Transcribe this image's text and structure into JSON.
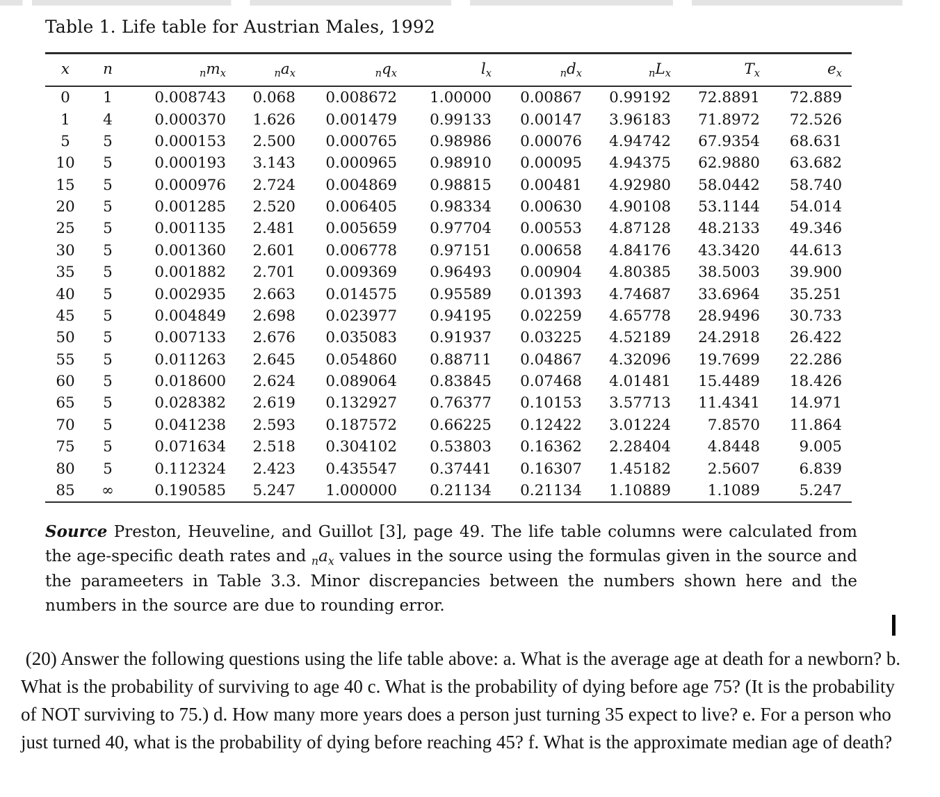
{
  "page": {
    "title": "Table 1. Life table for Austrian Males, 1992"
  },
  "table": {
    "headers": [
      {
        "pre": "",
        "main": "x",
        "sub": ""
      },
      {
        "pre": "",
        "main": "n",
        "sub": ""
      },
      {
        "pre": "n",
        "main": "m",
        "sub": "x"
      },
      {
        "pre": "n",
        "main": "a",
        "sub": "x"
      },
      {
        "pre": "n",
        "main": "q",
        "sub": "x"
      },
      {
        "pre": "",
        "main": "l",
        "sub": "x"
      },
      {
        "pre": "n",
        "main": "d",
        "sub": "x"
      },
      {
        "pre": "n",
        "main": "L",
        "sub": "x"
      },
      {
        "pre": "",
        "main": "T",
        "sub": "x"
      },
      {
        "pre": "",
        "main": "e",
        "sub": "x"
      }
    ],
    "rows": [
      [
        "0",
        "1",
        "0.008743",
        "0.068",
        "0.008672",
        "1.00000",
        "0.00867",
        "0.99192",
        "72.8891",
        "72.889"
      ],
      [
        "1",
        "4",
        "0.000370",
        "1.626",
        "0.001479",
        "0.99133",
        "0.00147",
        "3.96183",
        "71.8972",
        "72.526"
      ],
      [
        "5",
        "5",
        "0.000153",
        "2.500",
        "0.000765",
        "0.98986",
        "0.00076",
        "4.94742",
        "67.9354",
        "68.631"
      ],
      [
        "10",
        "5",
        "0.000193",
        "3.143",
        "0.000965",
        "0.98910",
        "0.00095",
        "4.94375",
        "62.9880",
        "63.682"
      ],
      [
        "15",
        "5",
        "0.000976",
        "2.724",
        "0.004869",
        "0.98815",
        "0.00481",
        "4.92980",
        "58.0442",
        "58.740"
      ],
      [
        "20",
        "5",
        "0.001285",
        "2.520",
        "0.006405",
        "0.98334",
        "0.00630",
        "4.90108",
        "53.1144",
        "54.014"
      ],
      [
        "25",
        "5",
        "0.001135",
        "2.481",
        "0.005659",
        "0.97704",
        "0.00553",
        "4.87128",
        "48.2133",
        "49.346"
      ],
      [
        "30",
        "5",
        "0.001360",
        "2.601",
        "0.006778",
        "0.97151",
        "0.00658",
        "4.84176",
        "43.3420",
        "44.613"
      ],
      [
        "35",
        "5",
        "0.001882",
        "2.701",
        "0.009369",
        "0.96493",
        "0.00904",
        "4.80385",
        "38.5003",
        "39.900"
      ],
      [
        "40",
        "5",
        "0.002935",
        "2.663",
        "0.014575",
        "0.95589",
        "0.01393",
        "4.74687",
        "33.6964",
        "35.251"
      ],
      [
        "45",
        "5",
        "0.004849",
        "2.698",
        "0.023977",
        "0.94195",
        "0.02259",
        "4.65778",
        "28.9496",
        "30.733"
      ],
      [
        "50",
        "5",
        "0.007133",
        "2.676",
        "0.035083",
        "0.91937",
        "0.03225",
        "4.52189",
        "24.2918",
        "26.422"
      ],
      [
        "55",
        "5",
        "0.011263",
        "2.645",
        "0.054860",
        "0.88711",
        "0.04867",
        "4.32096",
        "19.7699",
        "22.286"
      ],
      [
        "60",
        "5",
        "0.018600",
        "2.624",
        "0.089064",
        "0.83845",
        "0.07468",
        "4.01481",
        "15.4489",
        "18.426"
      ],
      [
        "65",
        "5",
        "0.028382",
        "2.619",
        "0.132927",
        "0.76377",
        "0.10153",
        "3.57713",
        "11.4341",
        "14.971"
      ],
      [
        "70",
        "5",
        "0.041238",
        "2.593",
        "0.187572",
        "0.66225",
        "0.12422",
        "3.01224",
        "7.8570",
        "11.864"
      ],
      [
        "75",
        "5",
        "0.071634",
        "2.518",
        "0.304102",
        "0.53803",
        "0.16362",
        "2.28404",
        "4.8448",
        "9.005"
      ],
      [
        "80",
        "5",
        "0.112324",
        "2.423",
        "0.435547",
        "0.37441",
        "0.16307",
        "1.45182",
        "2.5607",
        "6.839"
      ],
      [
        "85",
        "∞",
        "0.190585",
        "5.247",
        "1.000000",
        "0.21134",
        "0.21134",
        "1.10889",
        "1.1089",
        "5.247"
      ]
    ]
  },
  "source": {
    "label": "Source",
    "text_before_math": " Preston, Heuveline, and Guillot [3], page 49. The life table columns were calculated from the age-specific death rates and ",
    "math_pre": "n",
    "math_main": "a",
    "math_sub": "x",
    "text_after_math": " values in the source using the formulas given in the source and the parameeters in Table 3.3. Minor discrepancies between the numbers shown here and the numbers in the source are due to rounding error."
  },
  "question": {
    "text": " (20) Answer the following questions using the life table above: a. What is the average age at death for a newborn? b. What is the probability of surviving to age 40 c. What is the probability of dying before age 75? (It is the probability of NOT surviving to 75.) d. How many more years does a person just turning 35 expect to live? e. For a person who just turned 40, what is the probability of dying before reaching 45? f. What is the approximate median age of death?"
  }
}
